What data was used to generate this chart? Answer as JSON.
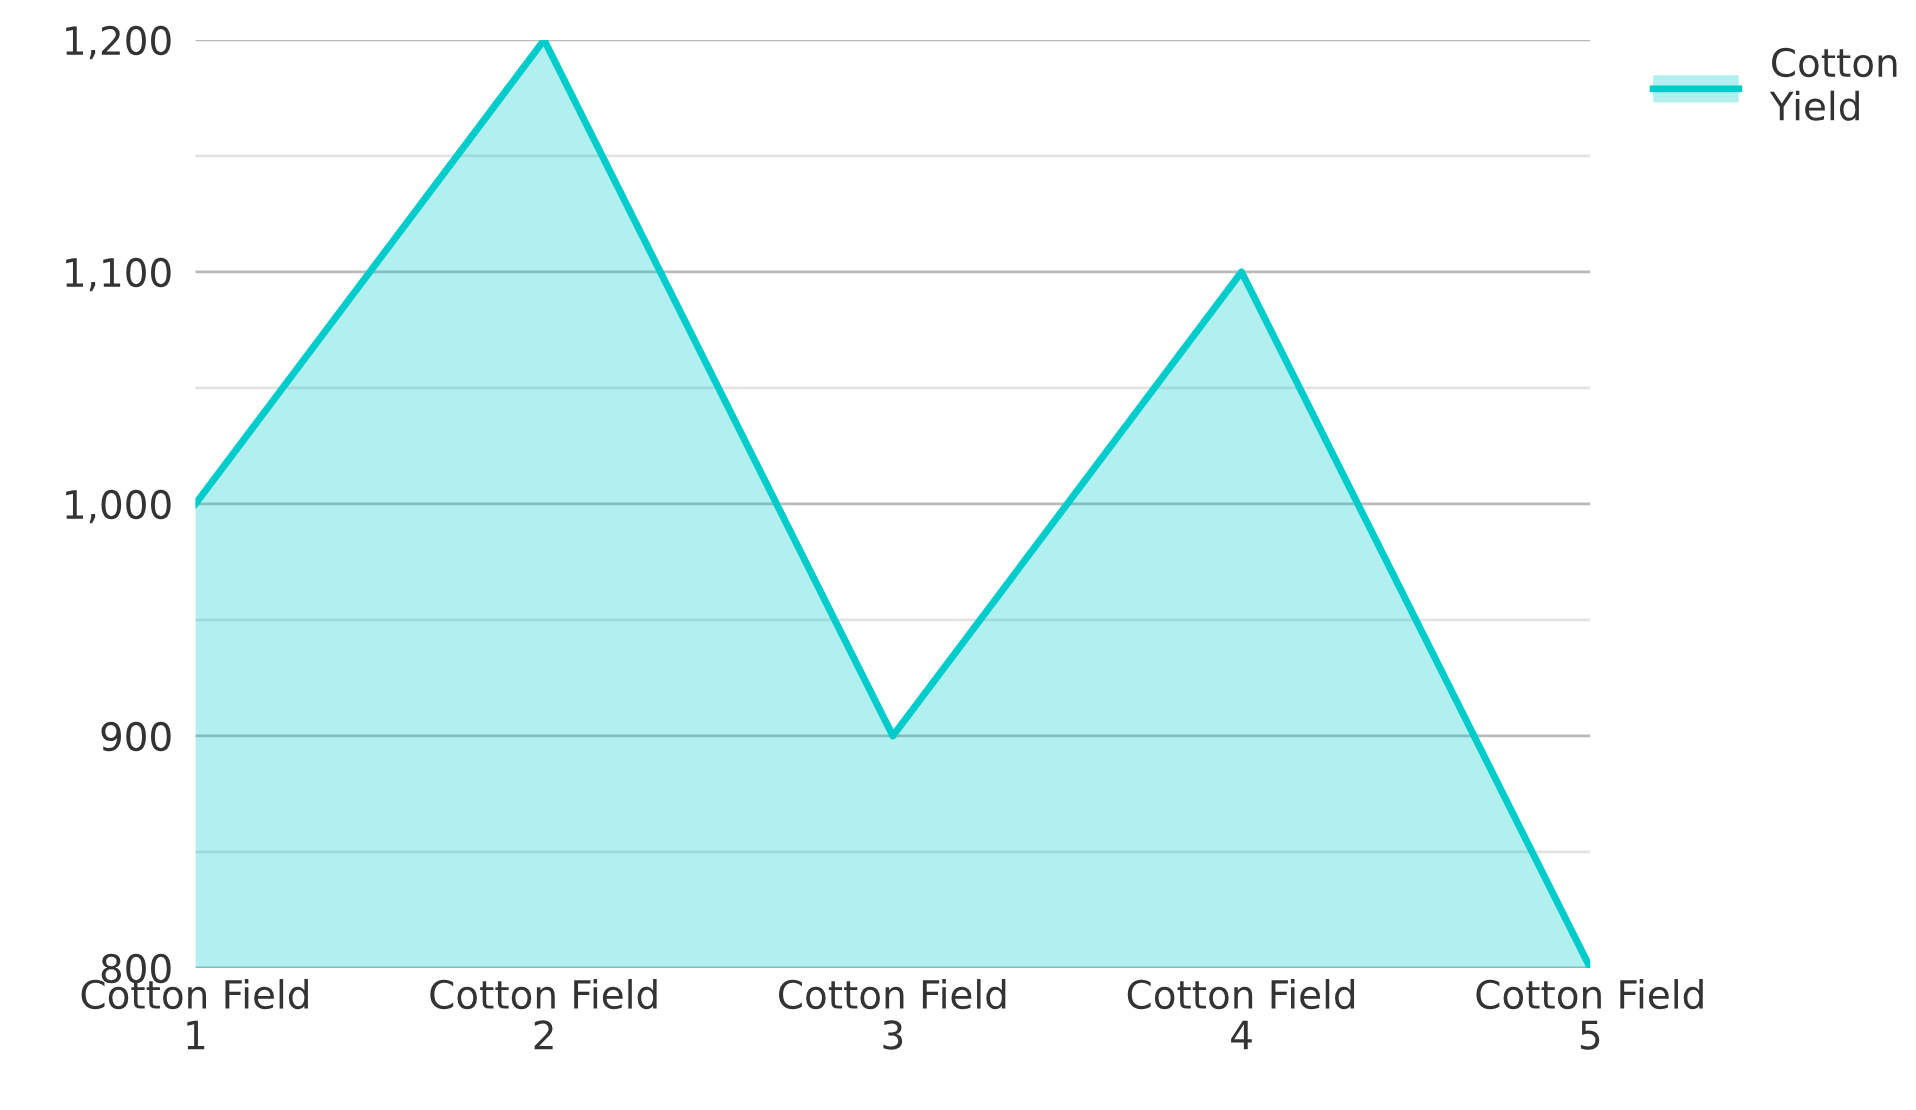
{
  "chart_data": {
    "type": "area",
    "categories": [
      "Cotton Field 1",
      "Cotton Field 2",
      "Cotton Field 3",
      "Cotton Field 4",
      "Cotton Field 5"
    ],
    "series": [
      {
        "name": "Cotton Yield",
        "color": "#00cccc",
        "values": [
          1000,
          1200,
          900,
          1100,
          800
        ]
      }
    ],
    "ylim": [
      800,
      1200
    ],
    "yticks": [
      {
        "value": 800,
        "label": "800"
      },
      {
        "value": 850,
        "label": null
      },
      {
        "value": 900,
        "label": "900"
      },
      {
        "value": 950,
        "label": null
      },
      {
        "value": 1000,
        "label": "1,000"
      },
      {
        "value": 1050,
        "label": null
      },
      {
        "value": 1100,
        "label": "1,100"
      },
      {
        "value": 1150,
        "label": null
      },
      {
        "value": 1200,
        "label": "1,200"
      }
    ],
    "grid": "y",
    "legend": "top right"
  }
}
